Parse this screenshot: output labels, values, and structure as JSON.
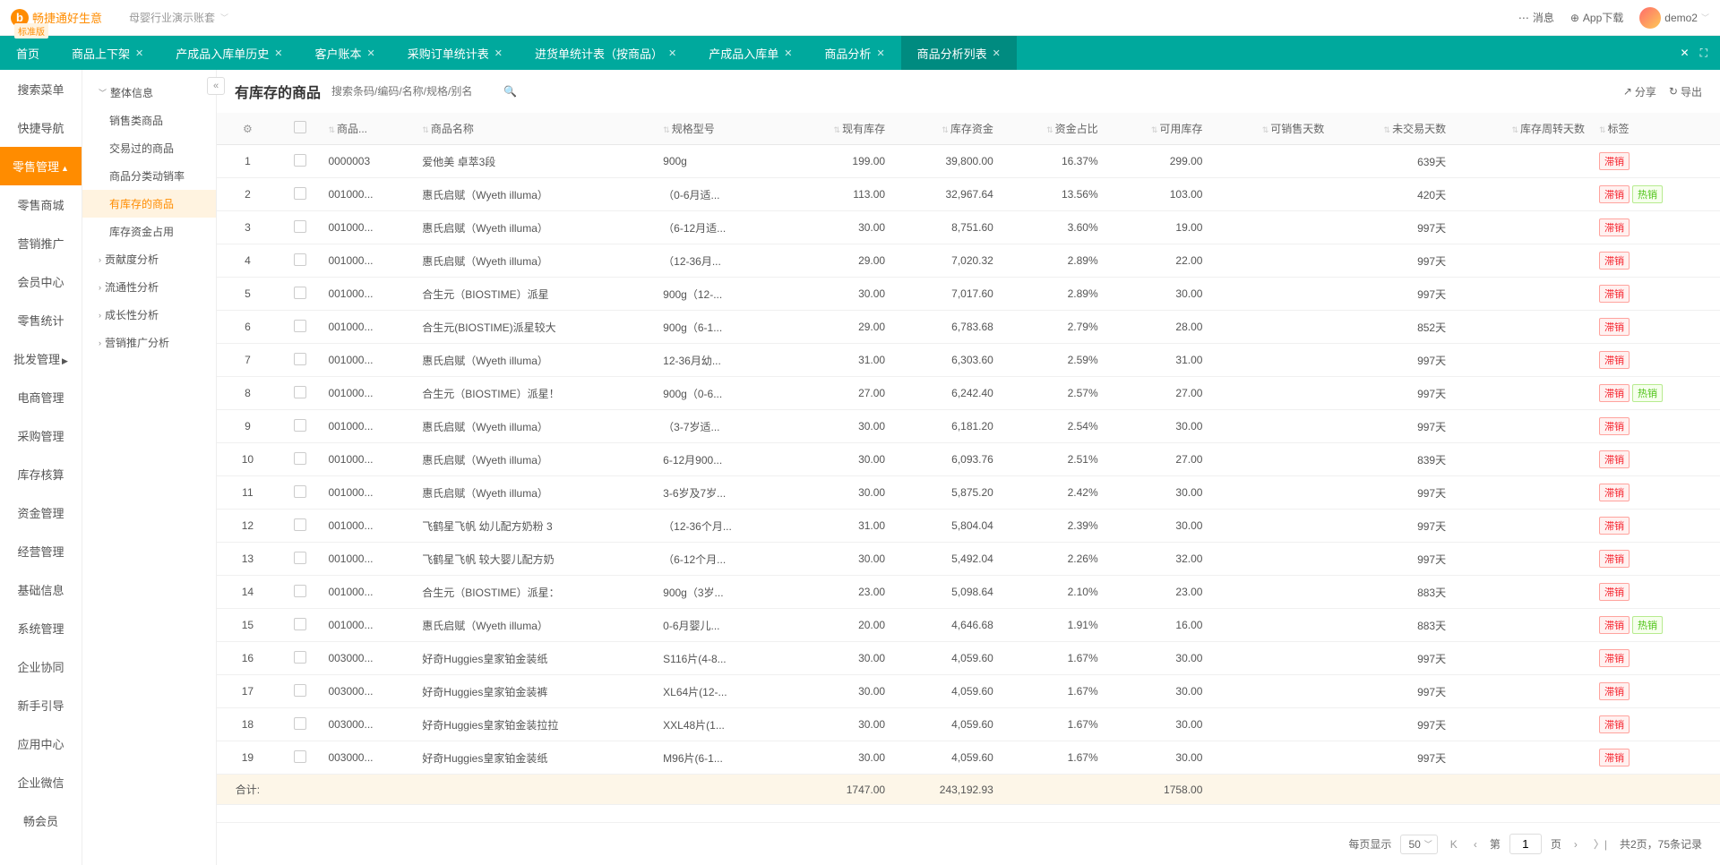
{
  "header": {
    "logo_text": "畅捷通好生意",
    "logo_badge": "标准版",
    "account_name": "母婴行业演示账套",
    "messages": "消息",
    "app_download": "App下载",
    "username": "demo2"
  },
  "tabs": {
    "items": [
      {
        "label": "首页",
        "closable": false,
        "active": false
      },
      {
        "label": "商品上下架",
        "closable": true,
        "active": false
      },
      {
        "label": "产成品入库单历史",
        "closable": true,
        "active": false
      },
      {
        "label": "客户账本",
        "closable": true,
        "active": false
      },
      {
        "label": "采购订单统计表",
        "closable": true,
        "active": false
      },
      {
        "label": "进货单统计表（按商品）",
        "closable": true,
        "active": false
      },
      {
        "label": "产成品入库单",
        "closable": true,
        "active": false
      },
      {
        "label": "商品分析",
        "closable": true,
        "active": false
      },
      {
        "label": "商品分析列表",
        "closable": true,
        "active": true
      }
    ]
  },
  "sidebar": [
    {
      "label": "搜索菜单",
      "active": false
    },
    {
      "label": "快捷导航",
      "active": false
    },
    {
      "label": "零售管理",
      "active": true,
      "expandable": true
    },
    {
      "label": "零售商城",
      "active": false
    },
    {
      "label": "营销推广",
      "active": false
    },
    {
      "label": "会员中心",
      "active": false
    },
    {
      "label": "零售统计",
      "active": false
    },
    {
      "label": "批发管理",
      "active": false,
      "expandable": true
    },
    {
      "label": "电商管理",
      "active": false
    },
    {
      "label": "采购管理",
      "active": false
    },
    {
      "label": "库存核算",
      "active": false
    },
    {
      "label": "资金管理",
      "active": false
    },
    {
      "label": "经营管理",
      "active": false
    },
    {
      "label": "基础信息",
      "active": false
    },
    {
      "label": "系统管理",
      "active": false
    },
    {
      "label": "企业协同",
      "active": false
    },
    {
      "label": "新手引导",
      "active": false
    },
    {
      "label": "应用中心",
      "active": false
    },
    {
      "label": "企业微信",
      "active": false
    },
    {
      "label": "畅会员",
      "active": false
    }
  ],
  "tree": [
    {
      "label": "整体信息",
      "level": 0,
      "expanded": true
    },
    {
      "label": "销售类商品",
      "level": 1
    },
    {
      "label": "交易过的商品",
      "level": 1
    },
    {
      "label": "商品分类动销率",
      "level": 1
    },
    {
      "label": "有库存的商品",
      "level": 1,
      "active": true
    },
    {
      "label": "库存资金占用",
      "level": 1
    },
    {
      "label": "贡献度分析",
      "level": 0
    },
    {
      "label": "流通性分析",
      "level": 0
    },
    {
      "label": "成长性分析",
      "level": 0
    },
    {
      "label": "营销推广分析",
      "level": 0
    }
  ],
  "content": {
    "title": "有库存的商品",
    "search_placeholder": "搜索条码/编码/名称/规格/别名",
    "share": "分享",
    "export": "导出"
  },
  "table": {
    "columns": [
      "",
      "",
      "商品...",
      "商品名称",
      "规格型号",
      "现有库存",
      "库存资金",
      "资金占比",
      "可用库存",
      "可销售天数",
      "未交易天数",
      "库存周转天数",
      "标签"
    ],
    "rows": [
      {
        "n": "1",
        "code": "0000003",
        "name": "爱他美 卓萃3段",
        "spec": "900g",
        "stock": "199.00",
        "fund": "39,800.00",
        "pct": "16.37%",
        "avail": "299.00",
        "sellDays": "",
        "noTrade": "639天",
        "turnover": "",
        "tags": [
          "滞销"
        ]
      },
      {
        "n": "2",
        "code": "001000...",
        "name": "惠氏启赋（Wyeth illuma）",
        "spec": "（0-6月适...",
        "stock": "113.00",
        "fund": "32,967.64",
        "pct": "13.56%",
        "avail": "103.00",
        "sellDays": "",
        "noTrade": "420天",
        "turnover": "",
        "tags": [
          "滞销",
          "热销"
        ]
      },
      {
        "n": "3",
        "code": "001000...",
        "name": "惠氏启赋（Wyeth illuma）",
        "spec": "（6-12月适...",
        "stock": "30.00",
        "fund": "8,751.60",
        "pct": "3.60%",
        "avail": "19.00",
        "sellDays": "",
        "noTrade": "997天",
        "turnover": "",
        "tags": [
          "滞销"
        ]
      },
      {
        "n": "4",
        "code": "001000...",
        "name": "惠氏启赋（Wyeth illuma）",
        "spec": "（12-36月...",
        "stock": "29.00",
        "fund": "7,020.32",
        "pct": "2.89%",
        "avail": "22.00",
        "sellDays": "",
        "noTrade": "997天",
        "turnover": "",
        "tags": [
          "滞销"
        ]
      },
      {
        "n": "5",
        "code": "001000...",
        "name": "合生元（BIOSTIME）派星",
        "spec": "900g（12-...",
        "stock": "30.00",
        "fund": "7,017.60",
        "pct": "2.89%",
        "avail": "30.00",
        "sellDays": "",
        "noTrade": "997天",
        "turnover": "",
        "tags": [
          "滞销"
        ]
      },
      {
        "n": "6",
        "code": "001000...",
        "name": "合生元(BIOSTIME)派星较大",
        "spec": "900g（6-1...",
        "stock": "29.00",
        "fund": "6,783.68",
        "pct": "2.79%",
        "avail": "28.00",
        "sellDays": "",
        "noTrade": "852天",
        "turnover": "",
        "tags": [
          "滞销"
        ]
      },
      {
        "n": "7",
        "code": "001000...",
        "name": "惠氏启赋（Wyeth illuma）",
        "spec": "12-36月幼...",
        "stock": "31.00",
        "fund": "6,303.60",
        "pct": "2.59%",
        "avail": "31.00",
        "sellDays": "",
        "noTrade": "997天",
        "turnover": "",
        "tags": [
          "滞销"
        ]
      },
      {
        "n": "8",
        "code": "001000...",
        "name": "合生元（BIOSTIME）派星！",
        "spec": "900g（0-6...",
        "stock": "27.00",
        "fund": "6,242.40",
        "pct": "2.57%",
        "avail": "27.00",
        "sellDays": "",
        "noTrade": "997天",
        "turnover": "",
        "tags": [
          "滞销",
          "热销"
        ]
      },
      {
        "n": "9",
        "code": "001000...",
        "name": "惠氏启赋（Wyeth illuma）",
        "spec": "（3-7岁适...",
        "stock": "30.00",
        "fund": "6,181.20",
        "pct": "2.54%",
        "avail": "30.00",
        "sellDays": "",
        "noTrade": "997天",
        "turnover": "",
        "tags": [
          "滞销"
        ]
      },
      {
        "n": "10",
        "code": "001000...",
        "name": "惠氏启赋（Wyeth illuma）",
        "spec": "6-12月900...",
        "stock": "30.00",
        "fund": "6,093.76",
        "pct": "2.51%",
        "avail": "27.00",
        "sellDays": "",
        "noTrade": "839天",
        "turnover": "",
        "tags": [
          "滞销"
        ]
      },
      {
        "n": "11",
        "code": "001000...",
        "name": "惠氏启赋（Wyeth illuma）",
        "spec": "3-6岁及7岁...",
        "stock": "30.00",
        "fund": "5,875.20",
        "pct": "2.42%",
        "avail": "30.00",
        "sellDays": "",
        "noTrade": "997天",
        "turnover": "",
        "tags": [
          "滞销"
        ]
      },
      {
        "n": "12",
        "code": "001000...",
        "name": "飞鹤星飞帆 幼儿配方奶粉 3",
        "spec": "（12-36个月...",
        "stock": "31.00",
        "fund": "5,804.04",
        "pct": "2.39%",
        "avail": "30.00",
        "sellDays": "",
        "noTrade": "997天",
        "turnover": "",
        "tags": [
          "滞销"
        ]
      },
      {
        "n": "13",
        "code": "001000...",
        "name": "飞鹤星飞帆 较大婴儿配方奶",
        "spec": "（6-12个月...",
        "stock": "30.00",
        "fund": "5,492.04",
        "pct": "2.26%",
        "avail": "32.00",
        "sellDays": "",
        "noTrade": "997天",
        "turnover": "",
        "tags": [
          "滞销"
        ]
      },
      {
        "n": "14",
        "code": "001000...",
        "name": "合生元（BIOSTIME）派星：",
        "spec": "900g（3岁...",
        "stock": "23.00",
        "fund": "5,098.64",
        "pct": "2.10%",
        "avail": "23.00",
        "sellDays": "",
        "noTrade": "883天",
        "turnover": "",
        "tags": [
          "滞销"
        ]
      },
      {
        "n": "15",
        "code": "001000...",
        "name": "惠氏启赋（Wyeth illuma）",
        "spec": "0-6月婴儿...",
        "stock": "20.00",
        "fund": "4,646.68",
        "pct": "1.91%",
        "avail": "16.00",
        "sellDays": "",
        "noTrade": "883天",
        "turnover": "",
        "tags": [
          "滞销",
          "热销"
        ]
      },
      {
        "n": "16",
        "code": "003000...",
        "name": "好奇Huggies皇家铂金装纸",
        "spec": "S116片(4-8...",
        "stock": "30.00",
        "fund": "4,059.60",
        "pct": "1.67%",
        "avail": "30.00",
        "sellDays": "",
        "noTrade": "997天",
        "turnover": "",
        "tags": [
          "滞销"
        ]
      },
      {
        "n": "17",
        "code": "003000...",
        "name": "好奇Huggies皇家铂金装裤",
        "spec": "XL64片(12-...",
        "stock": "30.00",
        "fund": "4,059.60",
        "pct": "1.67%",
        "avail": "30.00",
        "sellDays": "",
        "noTrade": "997天",
        "turnover": "",
        "tags": [
          "滞销"
        ]
      },
      {
        "n": "18",
        "code": "003000...",
        "name": "好奇Huggies皇家铂金装拉拉",
        "spec": "XXL48片(1...",
        "stock": "30.00",
        "fund": "4,059.60",
        "pct": "1.67%",
        "avail": "30.00",
        "sellDays": "",
        "noTrade": "997天",
        "turnover": "",
        "tags": [
          "滞销"
        ]
      },
      {
        "n": "19",
        "code": "003000...",
        "name": "好奇Huggies皇家铂金装纸",
        "spec": "M96片(6-1...",
        "stock": "30.00",
        "fund": "4,059.60",
        "pct": "1.67%",
        "avail": "30.00",
        "sellDays": "",
        "noTrade": "997天",
        "turnover": "",
        "tags": [
          "滞销"
        ]
      }
    ],
    "sum": {
      "label": "合计:",
      "stock": "1747.00",
      "fund": "243,192.93",
      "avail": "1758.00"
    }
  },
  "pagination": {
    "per_page_label": "每页显示",
    "page_size": "50",
    "page_label_prefix": "第",
    "page_current": "1",
    "page_label_suffix": "页",
    "total_text": "共2页，75条记录"
  }
}
